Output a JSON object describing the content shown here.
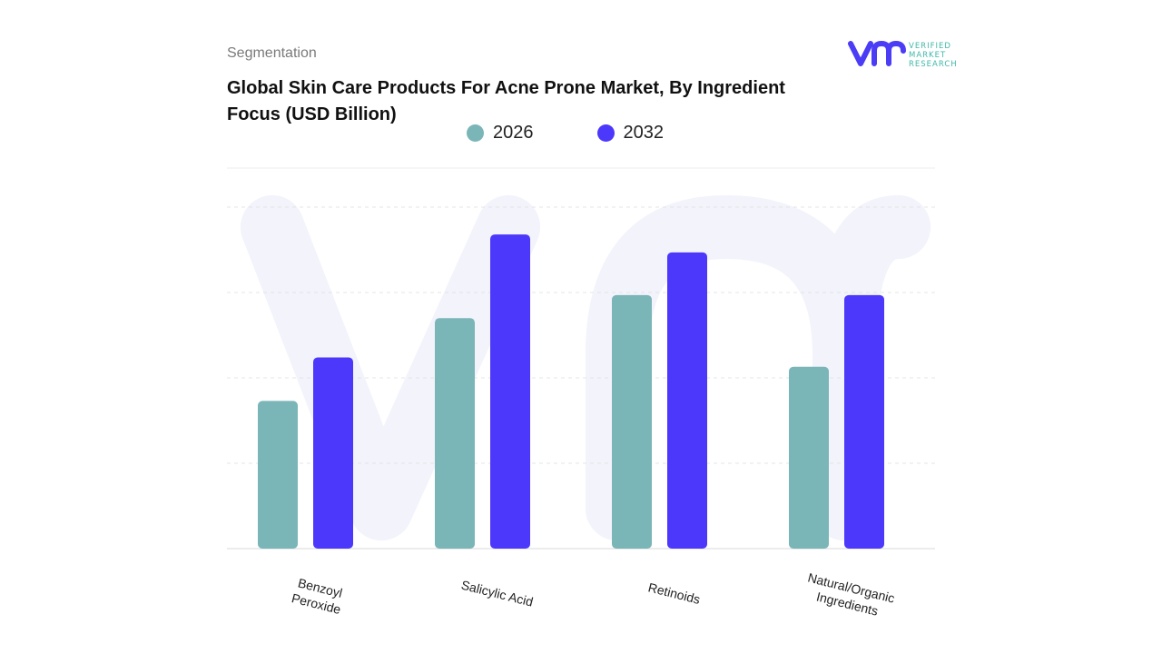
{
  "header": {
    "segment_label": "Segmentation",
    "title": "Global Skin Care Products For Acne Prone Market, By Ingredient Focus (USD Billion)"
  },
  "logo": {
    "text": "VERIFIED MARKET RESEARCH",
    "brand_colors": [
      "#4b3cf5",
      "#3fb8a8"
    ]
  },
  "chart_data": {
    "type": "bar",
    "title": "Global Skin Care Products For Acne Prone Market, By Ingredient Focus (USD Billion)",
    "categories": [
      [
        "Benzoyl",
        "Peroxide"
      ],
      [
        "Salicylic Acid"
      ],
      [
        "Retinoids"
      ],
      [
        "Natural/Organic",
        "Ingredients"
      ]
    ],
    "series": [
      {
        "name": "2026",
        "color": "#7ab5b8",
        "values": [
          1.73,
          2.7,
          2.97,
          2.13
        ]
      },
      {
        "name": "2032",
        "color": "#4b38fb",
        "values": [
          2.24,
          3.68,
          3.47,
          2.97
        ]
      }
    ],
    "ylim": [
      0,
      4
    ],
    "grid": true,
    "legend_placement": "top-center",
    "xlabel": "",
    "ylabel": ""
  }
}
